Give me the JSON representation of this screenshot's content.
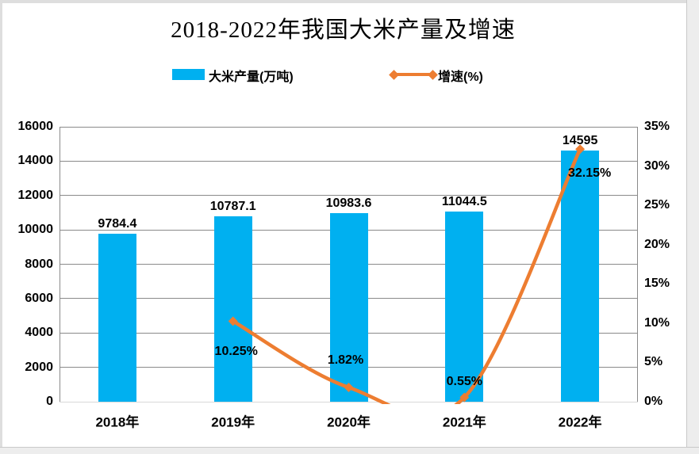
{
  "title": "2018-2022年我国大米产量及增速",
  "legend": {
    "bar_label": "大米产量(万吨)",
    "line_label": "增速(%)"
  },
  "chart_data": {
    "type": "bar",
    "subtype": "combo-bar-line-dual-axis",
    "title": "2018-2022年我国大米产量及增速",
    "categories": [
      "2018年",
      "2019年",
      "2020年",
      "2021年",
      "2022年"
    ],
    "series": [
      {
        "name": "大米产量(万吨)",
        "kind": "bar",
        "axis": "left",
        "values": [
          9784.4,
          10787.1,
          10983.6,
          11044.5,
          14595
        ],
        "labels": [
          "9784.4",
          "10787.1",
          "10983.6",
          "11044.5",
          "14595"
        ],
        "color": "#00B0F0"
      },
      {
        "name": "增速(%)",
        "kind": "line",
        "axis": "right",
        "values": [
          null,
          10.25,
          1.82,
          0.55,
          32.15
        ],
        "labels": [
          "",
          "10.25%",
          "1.82%",
          "0.55%",
          "32.15%"
        ],
        "color": "#ED7D31",
        "marker": "diamond",
        "smooth": true
      }
    ],
    "left_axis": {
      "min": 0,
      "max": 16000,
      "step": 2000,
      "ticks": [
        "0",
        "2000",
        "4000",
        "6000",
        "8000",
        "10000",
        "12000",
        "14000",
        "16000"
      ]
    },
    "right_axis": {
      "min": 0,
      "max": 35,
      "step": 5,
      "ticks": [
        "0%",
        "5%",
        "10%",
        "15%",
        "20%",
        "25%",
        "30%",
        "35%"
      ]
    },
    "grid": true,
    "legend_position": "top",
    "grid_color": "#8a8a8a",
    "baseline_color": "#d9d9d9"
  }
}
